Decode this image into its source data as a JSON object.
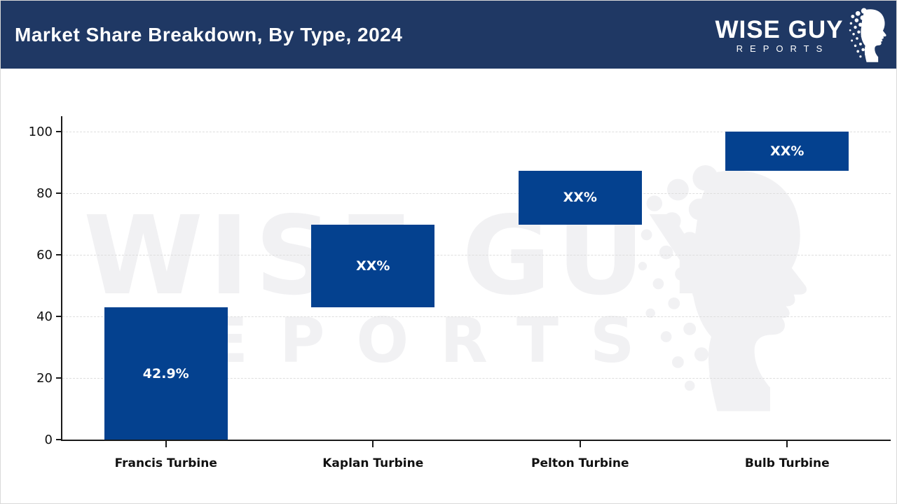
{
  "header": {
    "title": "Market Share Breakdown, By Type, 2024",
    "logo": {
      "line1": "WISE GUY",
      "line2": "REPORTS"
    }
  },
  "watermark": {
    "line1": "WISE GUY",
    "line2": "REPORTS"
  },
  "colors": {
    "header_bg": "#1F3864",
    "bar_blue": "#04418F",
    "bar_label_white": "#FFFFFF",
    "gridline_gray": "#DEDEDE",
    "watermark_gray": "#F1F1F3",
    "axis_black": "#1A1A1A"
  },
  "chart_data": {
    "type": "bar",
    "subtype": "waterfall",
    "title": "Market Share Breakdown, By Type, 2024",
    "categories": [
      "Francis Turbine",
      "Kaplan Turbine",
      "Pelton Turbine",
      "Bulb Turbine"
    ],
    "segments": [
      {
        "category": "Francis Turbine",
        "start": 0,
        "end": 42.9,
        "label": "42.9%"
      },
      {
        "category": "Kaplan Turbine",
        "start": 42.9,
        "end": 69.8,
        "label": "XX%"
      },
      {
        "category": "Pelton Turbine",
        "start": 69.8,
        "end": 87.3,
        "label": "XX%"
      },
      {
        "category": "Bulb Turbine",
        "start": 87.3,
        "end": 100,
        "label": "XX%"
      }
    ],
    "xlabel": "",
    "ylabel": "",
    "ylim": [
      0,
      100
    ],
    "yticks": [
      0,
      20,
      40,
      60,
      80,
      100
    ],
    "grid": "horizontal-dashed",
    "legend": "none",
    "bar_color": "#04418F",
    "bar_label_color": "#FFFFFF"
  }
}
